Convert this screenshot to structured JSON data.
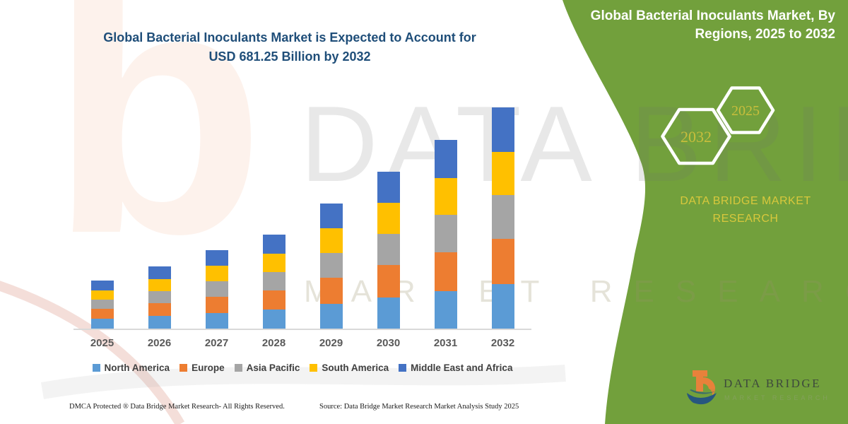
{
  "colors": {
    "panel_green": "#72A03C",
    "title_blue": "#1F4E79",
    "hexagon_text_yellow": "#C9BE3C",
    "brand_text_yellow": "#D8C83C",
    "axis_gray": "#D9D9D9",
    "x_label_gray": "#595959",
    "legend_text_gray": "#404040",
    "logo_orange": "#E8813B",
    "logo_blue": "#27567F"
  },
  "chart_title": {
    "line1": "Global Bacterial Inoculants Market is Expected to Account for",
    "line2": "USD 681.25 Billion by 2032"
  },
  "side_panel": {
    "title": "Global Bacterial Inoculants Market, By Regions, 2025 to 2032",
    "hexagon_big_label": "2032",
    "hexagon_small_label": "2025",
    "brand_text": "DATA BRIDGE MARKET RESEARCH"
  },
  "logo": {
    "name": "DATA BRIDGE",
    "subtitle": "MARKET RESEARCH"
  },
  "watermark": {
    "letter": "b",
    "text_top": "DATA BRIDGE",
    "text_bottom": "MARKET RESEARCH"
  },
  "footer": {
    "dmca": "DMCA Protected ® Data Bridge Market Research-  All Rights Reserved.",
    "source": "Source: Data Bridge Market Research  Market Analysis Study 2025"
  },
  "chart_data": {
    "type": "bar",
    "stacked": true,
    "title": "Global Bacterial Inoculants Market is Expected to Account for USD 681.25 Billion by 2032",
    "unit": "USD Billion",
    "xlabel": "",
    "ylabel": "",
    "ylim": [
      0,
      700
    ],
    "grid": false,
    "legend_position": "bottom",
    "categories": [
      "2025",
      "2026",
      "2027",
      "2028",
      "2029",
      "2030",
      "2031",
      "2032"
    ],
    "totals": [
      148.6,
      192.1,
      241.5,
      289.0,
      385.5,
      483.0,
      580.3,
      681.25
    ],
    "labeled_value_2032": 681.25,
    "series": [
      {
        "name": "North America",
        "color": "#5B9BD5",
        "values": [
          29.7,
          38.4,
          48.3,
          57.8,
          77.1,
          96.6,
          116.1,
          136.3
        ]
      },
      {
        "name": "Europe",
        "color": "#ED7D31",
        "values": [
          30.5,
          39.4,
          49.5,
          59.3,
          79.1,
          99.0,
          119.0,
          139.7
        ]
      },
      {
        "name": "Asia Pacific",
        "color": "#A5A5A5",
        "values": [
          29.7,
          38.4,
          48.3,
          57.8,
          77.1,
          96.6,
          116.1,
          136.3
        ]
      },
      {
        "name": "South America",
        "color": "#FFC000",
        "values": [
          29.0,
          37.5,
          47.1,
          56.3,
          75.1,
          94.2,
          113.1,
          132.8
        ]
      },
      {
        "name": "Middle East and Africa",
        "color": "#4472C4",
        "values": [
          29.7,
          38.4,
          48.3,
          57.8,
          77.1,
          96.6,
          116.0,
          136.15
        ]
      }
    ]
  }
}
